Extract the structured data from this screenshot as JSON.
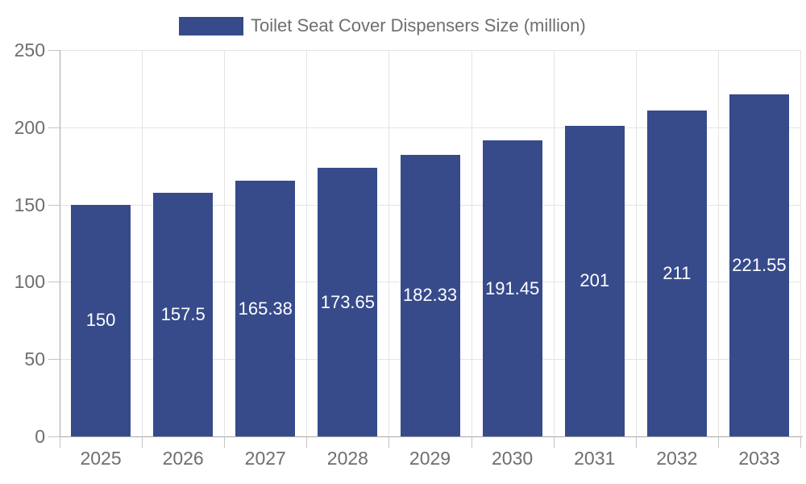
{
  "chart_data": {
    "type": "bar",
    "title": "Toilet Seat Cover Dispensers Size (million)",
    "categories": [
      "2025",
      "2026",
      "2027",
      "2028",
      "2029",
      "2030",
      "2031",
      "2032",
      "2033"
    ],
    "series": [
      {
        "name": "Toilet Seat Cover Dispensers Size (million)",
        "values": [
          150,
          157.5,
          165.38,
          173.65,
          182.33,
          191.45,
          201,
          211,
          221.55
        ]
      }
    ],
    "xlabel": "",
    "ylabel": "",
    "ylim": [
      0,
      250
    ],
    "yticks": [
      0,
      50,
      100,
      150,
      200,
      250
    ],
    "grid": true,
    "value_labels": "inside-center",
    "legend_position": "top"
  },
  "colors": {
    "bar": "#374b8b",
    "grid": "#e4e4e4",
    "axis": "#a8a8a8",
    "tick": "#c4c4c4",
    "text": "#6e6e6e",
    "bar_label": "#ffffff",
    "background": "#ffffff"
  }
}
